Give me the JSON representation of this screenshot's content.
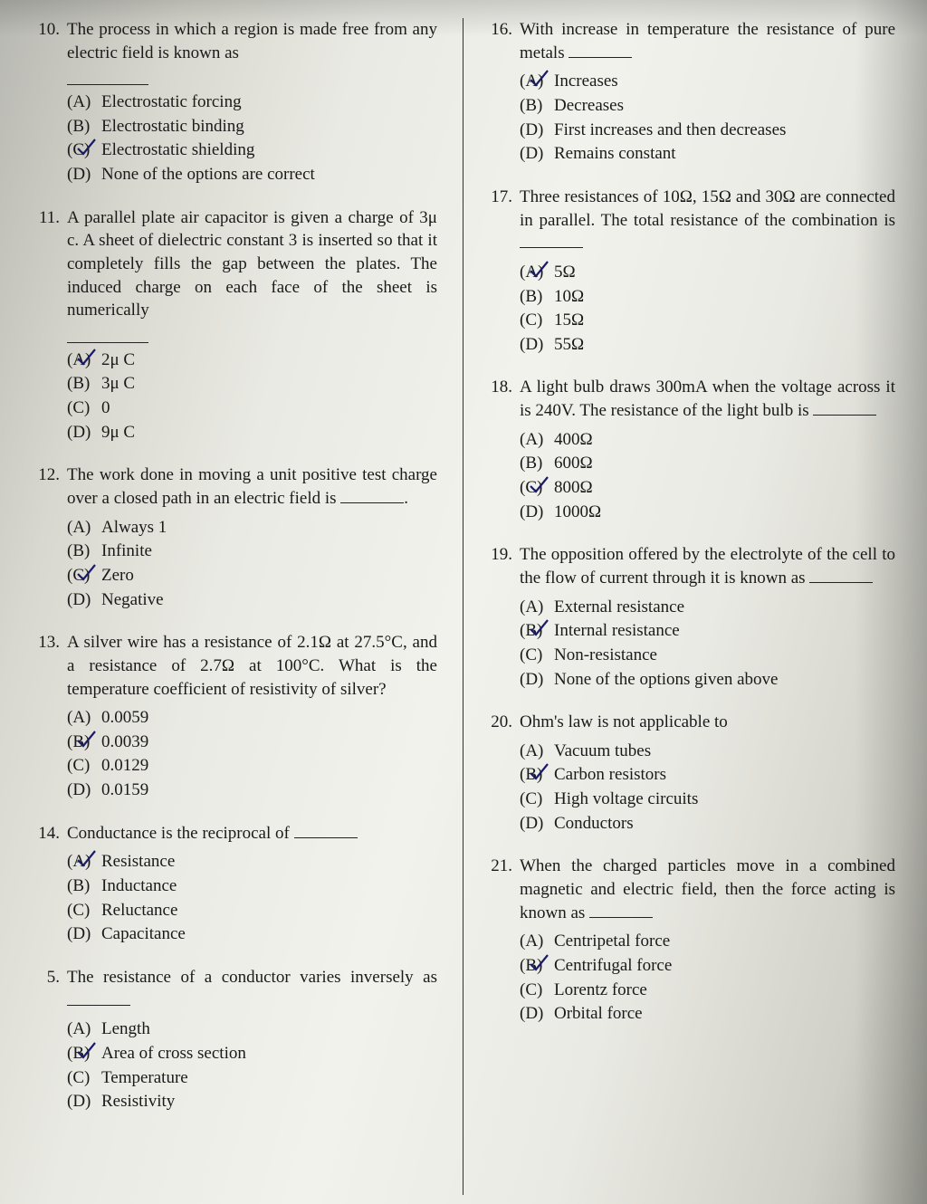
{
  "left": [
    {
      "num": "10.",
      "text": "The process in which a region is made free from any electric field is known as",
      "blankBelow": true,
      "options": [
        {
          "label": "(A)",
          "text": "Electrostatic forcing",
          "ticked": false
        },
        {
          "label": "(B)",
          "text": "Electrostatic binding",
          "ticked": false
        },
        {
          "label": "(C)",
          "text": "Electrostatic shielding",
          "ticked": true
        },
        {
          "label": "(D)",
          "text": "None of the options are correct",
          "ticked": false
        }
      ]
    },
    {
      "num": "11.",
      "text": "A parallel plate air capacitor is given a charge of 3μ c. A sheet of dielectric constant 3 is inserted so that it completely fills the gap between the plates. The induced charge on each face of the sheet is numerically",
      "blankBelow": true,
      "options": [
        {
          "label": "(A)",
          "text": "2μ C",
          "ticked": true
        },
        {
          "label": "(B)",
          "text": "3μ C",
          "ticked": false
        },
        {
          "label": "(C)",
          "text": "0",
          "ticked": false
        },
        {
          "label": "(D)",
          "text": "9μ C",
          "ticked": false
        }
      ]
    },
    {
      "num": "12.",
      "text": "The work done in moving a unit positive test charge over a closed path in an electric field is ",
      "blankInline": true,
      "period": ".",
      "options": [
        {
          "label": "(A)",
          "text": "Always 1",
          "ticked": false
        },
        {
          "label": "(B)",
          "text": "Infinite",
          "ticked": false
        },
        {
          "label": "(C)",
          "text": "Zero",
          "ticked": true
        },
        {
          "label": "(D)",
          "text": "Negative",
          "ticked": false
        }
      ]
    },
    {
      "num": "13.",
      "text": "A silver wire has a resistance of 2.1Ω at 27.5°C, and a resistance of 2.7Ω at 100°C. What is the temperature coefficient of resistivity of silver?",
      "options": [
        {
          "label": "(A)",
          "text": "0.0059",
          "ticked": false
        },
        {
          "label": "(B)",
          "text": "0.0039",
          "ticked": true
        },
        {
          "label": "(C)",
          "text": "0.0129",
          "ticked": false
        },
        {
          "label": "(D)",
          "text": "0.0159",
          "ticked": false
        }
      ]
    },
    {
      "num": "14.",
      "text": "Conductance is the reciprocal of ",
      "blankInline": true,
      "options": [
        {
          "label": "(A)",
          "text": "Resistance",
          "ticked": true
        },
        {
          "label": "(B)",
          "text": "Inductance",
          "ticked": false
        },
        {
          "label": "(C)",
          "text": "Reluctance",
          "ticked": false
        },
        {
          "label": "(D)",
          "text": "Capacitance",
          "ticked": false
        }
      ]
    },
    {
      "num": "5.",
      "text": "The resistance of a conductor varies inversely as ",
      "blankInline": true,
      "options": [
        {
          "label": "(A)",
          "text": "Length",
          "ticked": false
        },
        {
          "label": "(B)",
          "text": "Area of cross section",
          "ticked": true
        },
        {
          "label": "(C)",
          "text": "Temperature",
          "ticked": false
        },
        {
          "label": "(D)",
          "text": "Resistivity",
          "ticked": false
        }
      ]
    }
  ],
  "right": [
    {
      "num": "16.",
      "text": "With increase in temperature the resistance of pure metals ",
      "blankInline": true,
      "options": [
        {
          "label": "(A)",
          "text": "Increases",
          "ticked": true
        },
        {
          "label": "(B)",
          "text": "Decreases",
          "ticked": false
        },
        {
          "label": "(D)",
          "text": "First increases and then decreases",
          "ticked": false
        },
        {
          "label": "(D)",
          "text": "Remains constant",
          "ticked": false
        }
      ]
    },
    {
      "num": "17.",
      "text": "Three resistances of 10Ω, 15Ω and 30Ω are connected in parallel. The total resistance of the combination is ",
      "blankInline": true,
      "options": [
        {
          "label": "(A)",
          "text": "5Ω",
          "ticked": true
        },
        {
          "label": "(B)",
          "text": "10Ω",
          "ticked": false
        },
        {
          "label": "(C)",
          "text": "15Ω",
          "ticked": false
        },
        {
          "label": "(D)",
          "text": "55Ω",
          "ticked": false
        }
      ]
    },
    {
      "num": "18.",
      "text": "A light bulb draws 300mA when the voltage across it is 240V. The resistance of the light bulb is ",
      "blankInline": true,
      "options": [
        {
          "label": "(A)",
          "text": "400Ω",
          "ticked": false
        },
        {
          "label": "(B)",
          "text": "600Ω",
          "ticked": false
        },
        {
          "label": "(C)",
          "text": "800Ω",
          "ticked": true
        },
        {
          "label": "(D)",
          "text": "1000Ω",
          "ticked": false
        }
      ]
    },
    {
      "num": "19.",
      "text": "The opposition offered by the electrolyte of the cell to the flow of current through it is known as ",
      "blankInline": true,
      "options": [
        {
          "label": "(A)",
          "text": "External resistance",
          "ticked": false
        },
        {
          "label": "(B)",
          "text": "Internal resistance",
          "ticked": true
        },
        {
          "label": "(C)",
          "text": "Non-resistance",
          "ticked": false
        },
        {
          "label": "(D)",
          "text": "None of the options given above",
          "ticked": false
        }
      ]
    },
    {
      "num": "20.",
      "text": "Ohm's law is not applicable to",
      "options": [
        {
          "label": "(A)",
          "text": "Vacuum tubes",
          "ticked": false
        },
        {
          "label": "(B)",
          "text": "Carbon resistors",
          "ticked": true
        },
        {
          "label": "(C)",
          "text": "High voltage circuits",
          "ticked": false
        },
        {
          "label": "(D)",
          "text": "Conductors",
          "ticked": false
        }
      ]
    },
    {
      "num": "21.",
      "text": "When the charged particles move in a combined magnetic and electric field, then the force acting is known as ",
      "blankInline": true,
      "options": [
        {
          "label": "(A)",
          "text": "Centripetal force",
          "ticked": false
        },
        {
          "label": "(B)",
          "text": "Centrifugal force",
          "ticked": true
        },
        {
          "label": "(C)",
          "text": "Lorentz force",
          "ticked": false
        },
        {
          "label": "(D)",
          "text": "Orbital force",
          "ticked": false
        }
      ]
    }
  ]
}
